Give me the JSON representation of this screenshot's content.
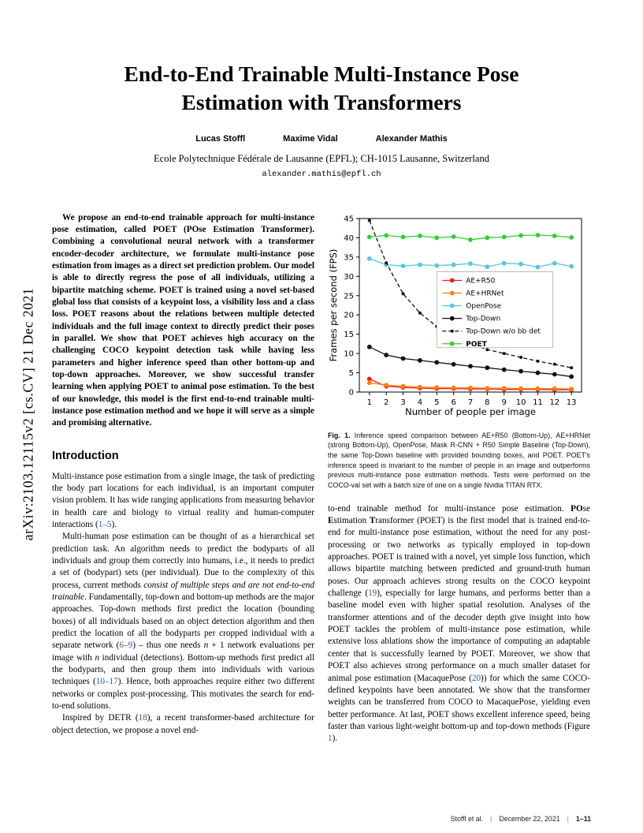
{
  "page": {
    "arxiv_label": "arXiv:2103.12115v2  [cs.CV]  21 Dec 2021"
  },
  "header": {
    "title_lines": [
      "End-to-End Trainable Multi-Instance Pose",
      "Estimation with Transformers"
    ],
    "authors": [
      "Lucas Stoffl",
      "Maxime Vidal",
      "Alexander Mathis"
    ],
    "affiliation": "Ecole Polytechnique Fédérale de Lausanne (EPFL); CH-1015 Lausanne, Switzerland",
    "email": "alexander.mathis@epfl.ch"
  },
  "abstract": {
    "runs": [
      {
        "t": "We propose an end-to-end trainable approach for multi-instance pose estimation, called POET (POse Estimation Transformer). Combining a convolutional neural network with a transformer encoder-decoder architecture, we formulate multi-instance pose estimation from images as a direct set prediction problem. Our model is able to directly regress the pose of all individuals, utilizing a bipartite matching scheme. POET is trained using a novel set-based global loss that consists of a keypoint loss, a visibility loss and a class loss. POET reasons about the relations between multiple detected individuals and the full image context to directly predict their poses in parallel. We show that POET achieves high accuracy on the challenging COCO keypoint detection task while having less parameters and higher inference speed than other bottom-up and top-down approaches. Moreover, we show successful transfer learning when applying POET to animal pose estimation. To the best of our knowledge, this model is the first end-to-end trainable multi-instance pose estimation method and we hope it will serve as a simple and promising alternative."
      }
    ]
  },
  "introduction": {
    "heading": "Introduction",
    "paragraphs": [
      {
        "indent": false,
        "runs": [
          {
            "t": "Multi-instance pose estimation from a single image, the task of predicting the body part locations for each individual, is an important computer vision problem. It has wide ranging applications from measuring behavior in health care and biology to virtual reality and human-computer interactions ("
          },
          {
            "t": "1–5",
            "c": "cite"
          },
          {
            "t": ")."
          }
        ]
      },
      {
        "indent": true,
        "runs": [
          {
            "t": "Multi-human pose estimation can be thought of as a hierarchical set prediction task. An algorithm needs to predict the bodyparts of all individuals and group them correctly into humans, i.e., it needs to predict a set of (bodypart) sets (per individual). Due to the complexity of this process, current methods "
          },
          {
            "t": "consist of multiple steps and are not end-to-end trainable",
            "c": "i"
          },
          {
            "t": ". Fundamentally, top-down and bottom-up methods are the major approaches. Top-down methods first predict the location (bounding boxes) of all individuals based on an object detection algorithm and then predict the location of all the bodyparts per cropped individual with a separate network ("
          },
          {
            "t": "6–9",
            "c": "cite"
          },
          {
            "t": ") – thus one needs "
          },
          {
            "t": "n",
            "c": "i"
          },
          {
            "t": " + 1 network evaluations per image with "
          },
          {
            "t": "n",
            "c": "i"
          },
          {
            "t": " individual (detections). Bottom-up methods first predict all the bodyparts, and then group them into individuals with various techniques ("
          },
          {
            "t": "10–17",
            "c": "cite"
          },
          {
            "t": "). Hence, both approaches require either two different networks or complex post-processing. This motivates the search for end-to-end solutions."
          }
        ]
      },
      {
        "indent": true,
        "runs": [
          {
            "t": "Inspired by DETR ("
          },
          {
            "t": "18",
            "c": "cite"
          },
          {
            "t": "), a recent transformer-based architecture for object detection, we propose a novel end-"
          }
        ]
      }
    ]
  },
  "right_column": {
    "paragraphs": [
      {
        "indent": false,
        "runs": [
          {
            "t": "to-end trainable method for multi-instance pose estimation. "
          },
          {
            "t": "PO",
            "c": "b"
          },
          {
            "t": "se "
          },
          {
            "t": "E",
            "c": "b"
          },
          {
            "t": "stimation "
          },
          {
            "t": "T",
            "c": "b"
          },
          {
            "t": "ransformer (POET) is the first model that is trained end-to-end for multi-instance pose estimation, without the need for any post-processing or two networks as typically employed in top-down approaches. POET is trained with a novel, yet simple loss function, which allows bipartite matching between predicted and ground-truth human poses. Our approach achieves strong results on the COCO keypoint challenge ("
          },
          {
            "t": "19",
            "c": "cite"
          },
          {
            "t": "), especially for large humans, and performs better than a baseline model even with higher spatial resolution. Analyses of the transformer attentions and of the decoder depth give insight into how POET tackles the problem of multi-instance pose estimation, while extensive loss ablations show the importance of computing an adaptable center that is successfully learned by POET. Moreover, we show that POET also achieves strong performance on a much smaller dataset for animal pose estimation (MacaquePose ("
          },
          {
            "t": "20",
            "c": "cite"
          },
          {
            "t": ")) for which the same COCO-defined keypoints have been annotated. We show that the transformer weights can be transferred from COCO to MacaquePose, yielding even better performance. At last, POET shows excellent inference speed, being faster than various light-weight bottom-up and top-down methods (Figure "
          },
          {
            "t": "1",
            "c": "cite"
          },
          {
            "t": ")."
          }
        ]
      }
    ]
  },
  "figure": {
    "caption": {
      "runs": [
        {
          "t": "Fig. 1.",
          "c": "b"
        },
        {
          "t": "  Inference speed comparison between AE+R50 (Bottom-Up), AE+HRNet (strong Bottom-Up), OpenPose, Mask R-CNN + R50 Simple Baseline (Top-Down), the same Top-Down baseline with provided bounding boxes, and POET. POET's inference speed is invariant to the number of people in an image and outperforms previous multi-instance pose estimation methods. Tests were performed on the COCO-val set with a batch size of one on a single Nvidia TITAN RTX."
        }
      ]
    }
  },
  "footer": {
    "authors": "Stoffl et al.",
    "sep": "|",
    "date": "December 22, 2021",
    "pages": "1–11"
  },
  "chart_data": {
    "type": "line",
    "title": "",
    "xlabel": "Number of people per image",
    "ylabel": "Frames per second (FPS)",
    "x": [
      1,
      2,
      3,
      4,
      5,
      6,
      7,
      8,
      9,
      10,
      11,
      12,
      13
    ],
    "xlim": [
      0.4,
      13.6
    ],
    "ylim": [
      0,
      45
    ],
    "ytick": 5,
    "grid": false,
    "legend_pos": {
      "x1": 5.0,
      "y1": 31.2,
      "x2": 11.9,
      "y2": 11.5
    },
    "series": [
      {
        "name": "AE+R50",
        "color": "#e32020",
        "values": [
          3.4,
          1.5,
          1.2,
          1.0,
          0.9,
          0.9,
          0.8,
          0.8,
          0.7,
          0.7,
          0.7,
          0.6,
          0.6
        ]
      },
      {
        "name": "AE+HRNet",
        "color": "#ff7f0e",
        "values": [
          2.4,
          1.8,
          1.5,
          1.3,
          1.2,
          1.1,
          1.1,
          1.0,
          1.0,
          0.9,
          0.9,
          0.9,
          0.8
        ]
      },
      {
        "name": "OpenPose",
        "color": "#56c5e8",
        "values": [
          34.6,
          33.0,
          32.7,
          33.0,
          32.8,
          33.0,
          33.3,
          32.5,
          33.4,
          33.2,
          32.4,
          33.4,
          32.6
        ]
      },
      {
        "name": "Top-Down",
        "color": "#111111",
        "values": [
          11.7,
          9.6,
          8.7,
          8.2,
          7.7,
          7.2,
          6.7,
          6.3,
          5.8,
          5.4,
          5.0,
          4.6,
          4.0
        ]
      },
      {
        "name": "Top-Down w/o bb det",
        "color": "#111111",
        "dash": true,
        "values": [
          44.5,
          33.5,
          25.5,
          20.5,
          17.0,
          14.5,
          12.5,
          11.0,
          10.0,
          9.0,
          8.0,
          7.2,
          6.3
        ]
      },
      {
        "name": "POET",
        "color": "#32cd32",
        "bold": true,
        "values": [
          40.2,
          40.6,
          40.2,
          40.5,
          40.0,
          40.3,
          39.5,
          40.0,
          40.2,
          40.6,
          40.7,
          40.5,
          40.1
        ]
      }
    ]
  }
}
